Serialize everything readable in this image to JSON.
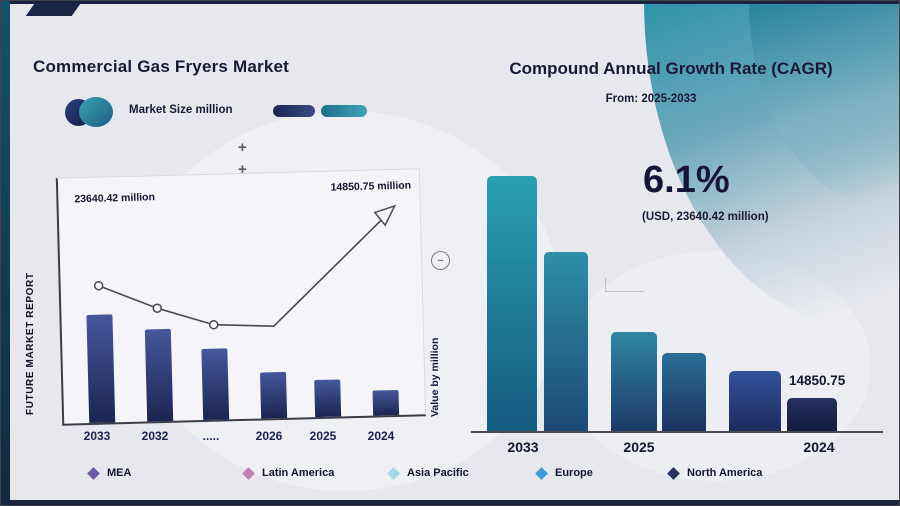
{
  "left": {
    "title": "Commercial Gas Fryers Market",
    "legend_label": "Market Size million",
    "vertical_label": "FUTURE MARKET REPORT",
    "annotation_left": "23640.42 million",
    "annotation_right": "14850.75 million"
  },
  "middle": {
    "value_axis_label": "Value by million"
  },
  "right": {
    "title": "Compound Annual Growth Rate (CAGR)",
    "subtitle": "From: 2025-2033",
    "cagr": "6.1%",
    "usd_note": "(USD, 23640.42 million)",
    "value_label": "14850.75"
  },
  "decor": {
    "plus": "+",
    "minus": "−"
  },
  "legend": {
    "items": [
      {
        "label": "MEA",
        "color": "#6d58a6"
      },
      {
        "label": "Latin America",
        "color": "#c57fb0"
      },
      {
        "label": "Asia Pacific",
        "color": "#9ed9e9"
      },
      {
        "label": "Europe",
        "color": "#3e9bd5"
      },
      {
        "label": "North America",
        "color": "#28335f"
      }
    ]
  },
  "chart_data": [
    {
      "id": "market-size-by-year",
      "type": "bar",
      "title": "Commercial Gas Fryers Market — Market Size million",
      "categories": [
        "2033",
        "2032",
        ".....",
        "2026",
        "2025",
        "2024"
      ],
      "values_relative": [
        1.0,
        0.85,
        0.66,
        0.43,
        0.34,
        0.23
      ],
      "annotations": [
        "23640.42 million",
        "14850.75 million"
      ],
      "ylabel": "Value by million",
      "notes": "Descending bars from 2033 to 2024; overlaid trend line with circle markers descends then an outlined arrow rises to the 2033 annotation. Values between endpoints estimated from bar heights.",
      "legend_position": "bottom",
      "grid": false
    },
    {
      "id": "cagr-comparison",
      "type": "bar",
      "title": "Compound Annual Growth Rate (CAGR)",
      "subtitle": "From: 2025-2033",
      "cagr_value": "6.1%",
      "cagr_note": "(USD, 23640.42 million)",
      "categories": [
        "2033",
        "2025",
        "2024"
      ],
      "series": [
        {
          "name": "series-1",
          "values_relative": [
            1.0,
            0.39,
            0.235
          ]
        },
        {
          "name": "series-2",
          "values_relative": [
            0.7,
            0.305,
            0.13
          ]
        }
      ],
      "data_labels": {
        "2024": "14850.75"
      },
      "grid": false
    }
  ]
}
